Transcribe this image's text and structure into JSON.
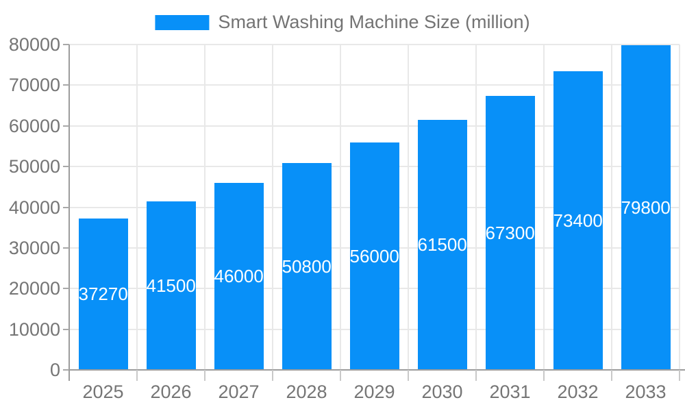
{
  "chart_data": {
    "type": "bar",
    "title": "Smart Washing Machine Size (million)",
    "categories": [
      "2025",
      "2026",
      "2027",
      "2028",
      "2029",
      "2030",
      "2031",
      "2032",
      "2033"
    ],
    "values": [
      37270,
      41500,
      46000,
      50800,
      56000,
      61500,
      67300,
      73400,
      79800
    ],
    "xlabel": "",
    "ylabel": "",
    "ylim": [
      0,
      80000
    ],
    "ytick_step": 10000,
    "ytick_labels": [
      "0",
      "10000",
      "20000",
      "30000",
      "40000",
      "50000",
      "60000",
      "70000",
      "80000"
    ],
    "grid": true,
    "legend_position": "top",
    "bar_labels_inside": true
  },
  "colors": {
    "bar": "#0890f8",
    "bar_label": "#ffffff",
    "axis_line": "#9c9c9c",
    "grid_line": "#e8e8e8",
    "tick_mark": "#c9c9c9",
    "tick_text": "#757575",
    "legend_text": "#737373",
    "background": "#ffffff"
  }
}
